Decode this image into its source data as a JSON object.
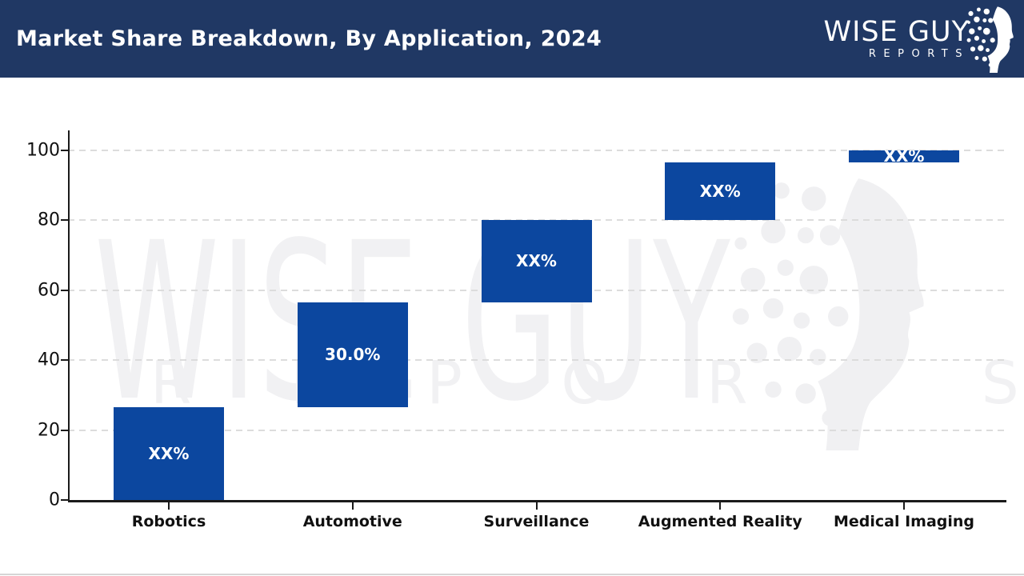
{
  "header": {
    "title": "Market Share Breakdown, By Application, 2024",
    "bg_color": "#203864",
    "logo": {
      "line1": "WISE GUY",
      "line2": "REPORTS"
    }
  },
  "watermark": {
    "line1": "WISE GUY",
    "line2": "R E P O R T S"
  },
  "chart_data": {
    "type": "bar",
    "subtype": "waterfall",
    "title": "Market Share Breakdown, By Application, 2024",
    "xlabel": "",
    "ylabel": "",
    "ylim": [
      0,
      100
    ],
    "yticks": [
      0,
      20,
      40,
      60,
      80,
      100
    ],
    "grid": "horizontal dashed",
    "legend": "none",
    "bar_color": "#0c479f",
    "data_label_color": "#ffffff",
    "categories": [
      "Robotics",
      "Automotive",
      "Surveillance",
      "Augmented Reality",
      "Medical Imaging"
    ],
    "segments": [
      {
        "category": "Robotics",
        "start": 0,
        "end": 26.5,
        "value": 26.5,
        "label": "XX%"
      },
      {
        "category": "Automotive",
        "start": 26.5,
        "end": 56.5,
        "value": 30.0,
        "label": "30.0%"
      },
      {
        "category": "Surveillance",
        "start": 56.5,
        "end": 80,
        "value": 23.5,
        "label": "XX%"
      },
      {
        "category": "Augmented Reality",
        "start": 80,
        "end": 96.5,
        "value": 16.5,
        "label": "XX%"
      },
      {
        "category": "Medical Imaging",
        "start": 96.5,
        "end": 100,
        "value": 3.5,
        "label": "XX%"
      }
    ]
  }
}
